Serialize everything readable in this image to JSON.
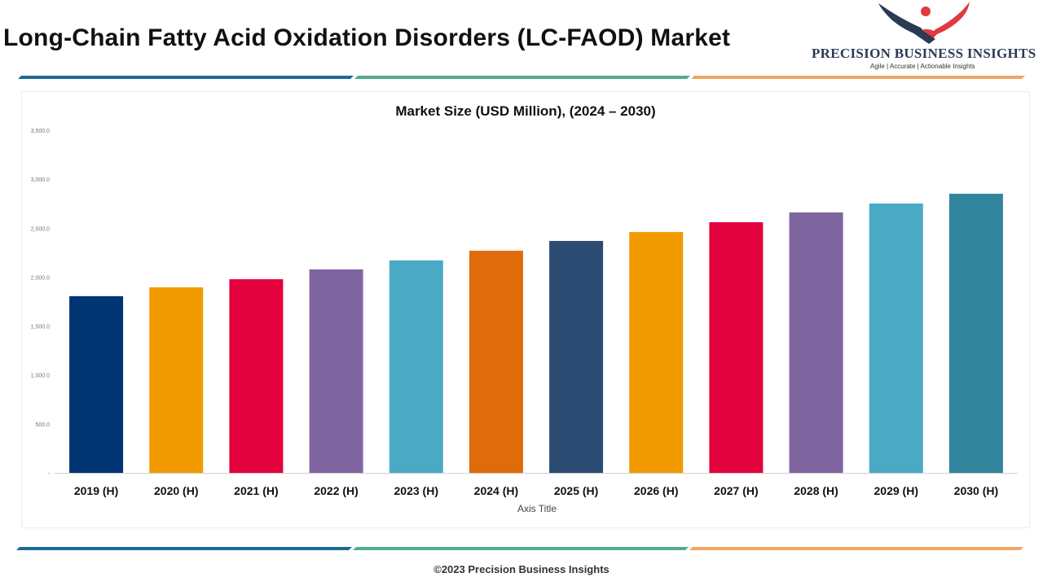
{
  "header": {
    "title": "Long-Chain Fatty Acid Oxidation Disorders (LC-FAOD) Market"
  },
  "logo": {
    "name": "PRECISION BUSINESS INSIGHTS",
    "tagline": "Agile | Accurate | Actionable Insights",
    "colors": {
      "navy": "#2b3a55",
      "red": "#e03a3e"
    }
  },
  "stripes": {
    "colors": [
      "#1b6a96",
      "#52ad8a",
      "#f0a664"
    ]
  },
  "footer": {
    "copyright": "©2023 Precision Business Insights"
  },
  "chart_data": {
    "type": "bar",
    "title": "Market Size (USD Million), (2024 – 2030)",
    "xlabel": "Axis Title",
    "ylabel": "",
    "ylim": [
      0,
      3500
    ],
    "yticks": [
      0,
      500,
      1000,
      1500,
      2000,
      2500,
      3000,
      3500
    ],
    "ytick_labels": [
      "-",
      "500.0",
      "1,000.0",
      "1,500.0",
      "2,000.0",
      "2,500.0",
      "3,000.0",
      "3,500.0"
    ],
    "grid": false,
    "legend": "none",
    "categories": [
      "2019 (H)",
      "2020 (H)",
      "2021 (H)",
      "2022 (H)",
      "2023 (H)",
      "2024 (H)",
      "2025 (H)",
      "2026 (H)",
      "2027 (H)",
      "2028 (H)",
      "2029 (H)",
      "2030 (H)"
    ],
    "values": [
      1805,
      1895,
      1978,
      2078,
      2170,
      2269,
      2369,
      2460,
      2560,
      2660,
      2751,
      2851
    ],
    "colors": [
      "#003473",
      "#f19a00",
      "#e2003d",
      "#7f65a0",
      "#4aaac6",
      "#e06b0a",
      "#2b4b73",
      "#f19a00",
      "#e2003d",
      "#7f65a0",
      "#4aaac6",
      "#31859c"
    ]
  }
}
